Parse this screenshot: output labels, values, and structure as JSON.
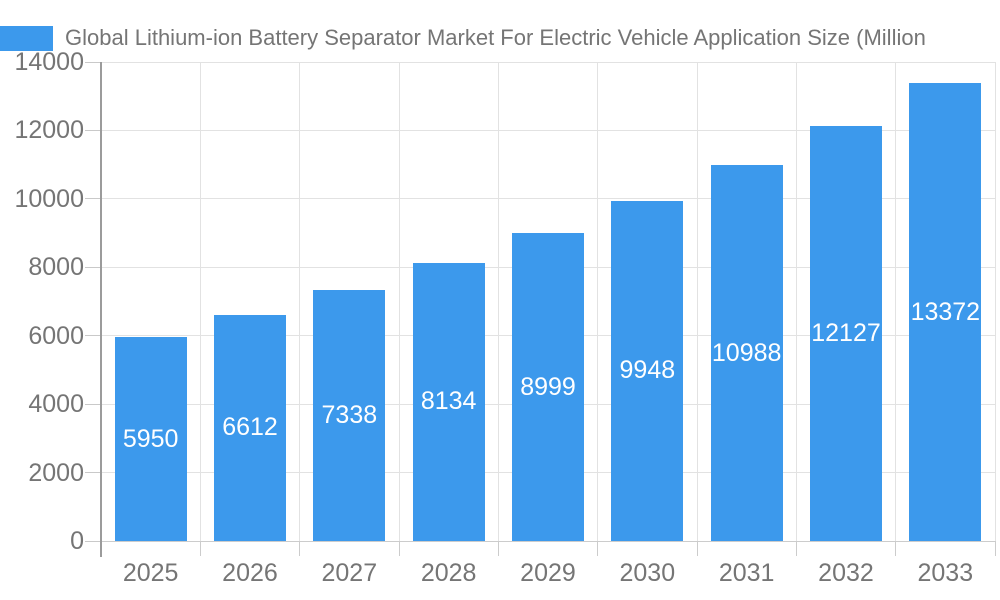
{
  "chart_data": {
    "type": "bar",
    "title": "Global Lithium-ion Battery Separator Market For Electric Vehicle Application Size (Million",
    "categories": [
      "2025",
      "2026",
      "2027",
      "2028",
      "2029",
      "2030",
      "2031",
      "2032",
      "2033"
    ],
    "values": [
      5950,
      6612,
      7338,
      8134,
      8999,
      9948,
      10988,
      12127,
      13372
    ],
    "y_ticks": [
      0,
      2000,
      4000,
      6000,
      8000,
      10000,
      12000,
      14000
    ],
    "ylim": [
      0,
      14000
    ],
    "grid": true,
    "legend_position": "top-left",
    "value_labels": "centered-inside-bars",
    "colors": {
      "bar": "#3c99ec",
      "value_label": "#ffffff",
      "axis_text": "#757575",
      "gridline": "#e2e2e2",
      "axis_line": "#9b9b9b"
    }
  }
}
